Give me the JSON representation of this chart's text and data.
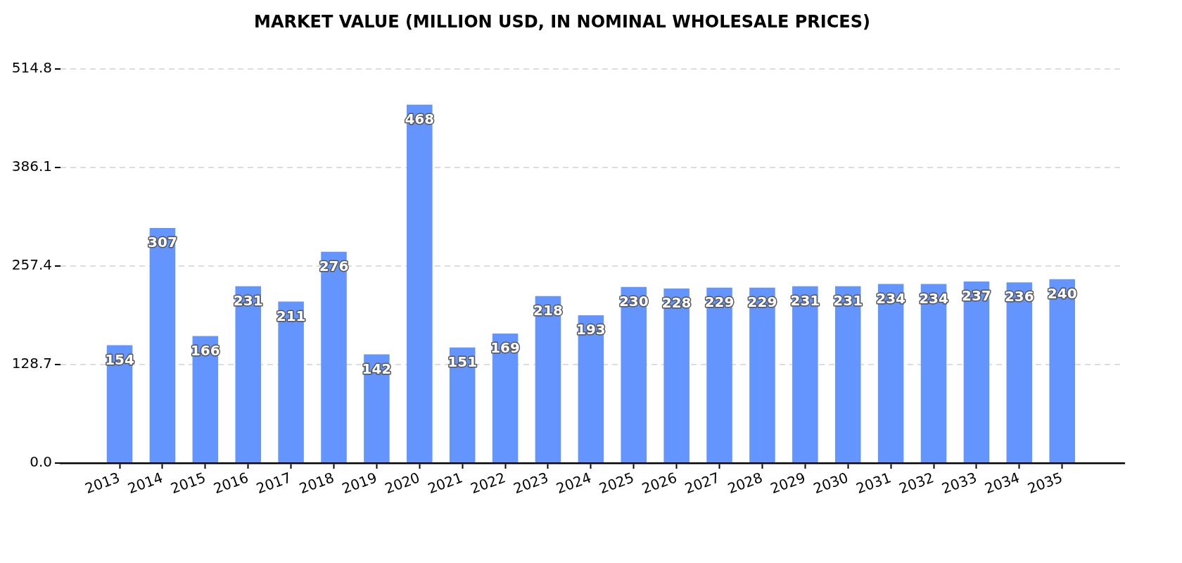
{
  "chart_data": {
    "type": "bar",
    "title": "MARKET VALUE (MILLION USD, IN NOMINAL WHOLESALE PRICES)",
    "categories": [
      "2013",
      "2014",
      "2015",
      "2016",
      "2017",
      "2018",
      "2019",
      "2020",
      "2021",
      "2022",
      "2023",
      "2024",
      "2025",
      "2026",
      "2027",
      "2028",
      "2029",
      "2030",
      "2031",
      "2032",
      "2033",
      "2034",
      "2035"
    ],
    "values": [
      154,
      307,
      166,
      231,
      211,
      276,
      142,
      468,
      151,
      169,
      218,
      193,
      230,
      228,
      229,
      229,
      231,
      231,
      234,
      234,
      237,
      236,
      240
    ],
    "color": "#6495ff",
    "ylim": [
      0,
      514.8
    ],
    "yticks": [
      {
        "value": 0,
        "label": "0.0"
      },
      128.7,
      257.4,
      386.1,
      514.8
    ],
    "grid": "y",
    "legend": false,
    "data_labels": true
  }
}
